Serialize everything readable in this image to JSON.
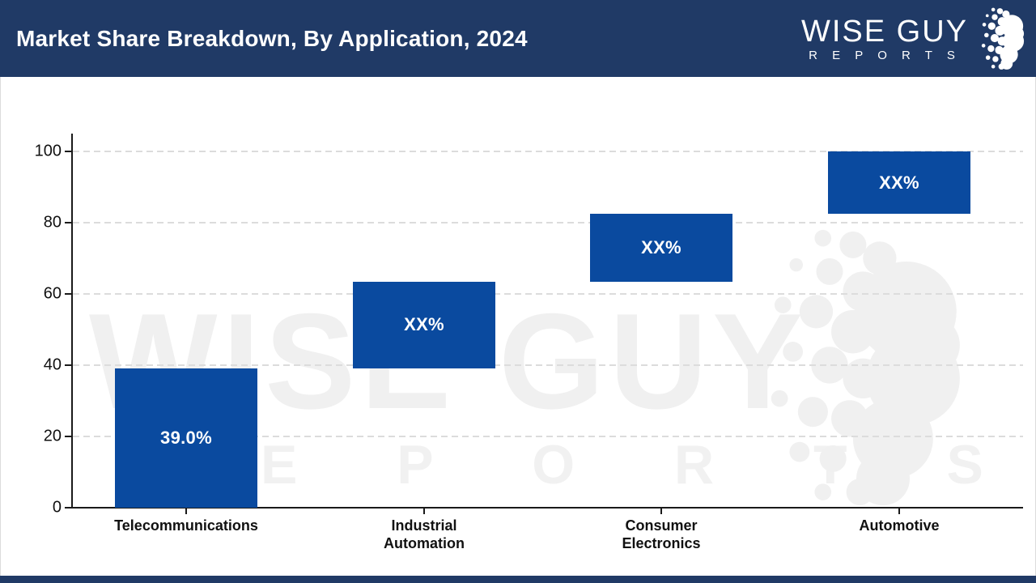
{
  "header": {
    "title": "Market Share Breakdown, By Application, 2024"
  },
  "logo": {
    "name": "WISE GUY",
    "tagline": "R E P O R T S"
  },
  "watermark": {
    "line1": "WISE GUY",
    "line2": "R E P O R T S"
  },
  "chart_data": {
    "type": "bar",
    "subtype": "floating-segment-waterfall",
    "title": "Market Share Breakdown, By Application, 2024",
    "categories": [
      "Telecommunications",
      "Industrial\nAutomation",
      "Consumer\nElectronics",
      "Automotive"
    ],
    "bars": [
      {
        "category": "Telecommunications",
        "start": 0,
        "end": 39.0,
        "label": "39.0%"
      },
      {
        "category": "Industrial Automation",
        "start": 39.0,
        "end": 63.5,
        "label": "XX%"
      },
      {
        "category": "Consumer Electronics",
        "start": 63.5,
        "end": 82.5,
        "label": "XX%"
      },
      {
        "category": "Automotive",
        "start": 82.5,
        "end": 100.0,
        "label": "XX%"
      }
    ],
    "ylim": [
      0,
      100
    ],
    "yticks": [
      0,
      20,
      40,
      60,
      80,
      100
    ],
    "xlabel": "",
    "ylabel": "",
    "grid": "horizontal-dashed",
    "legend": "none",
    "colors": {
      "bar": "#0a4a9f",
      "header_bg": "#203a66",
      "grid": "#dcdcdc",
      "axis": "#1a1a1a",
      "bar_label": "#ffffff",
      "tick_label": "#111111"
    }
  }
}
